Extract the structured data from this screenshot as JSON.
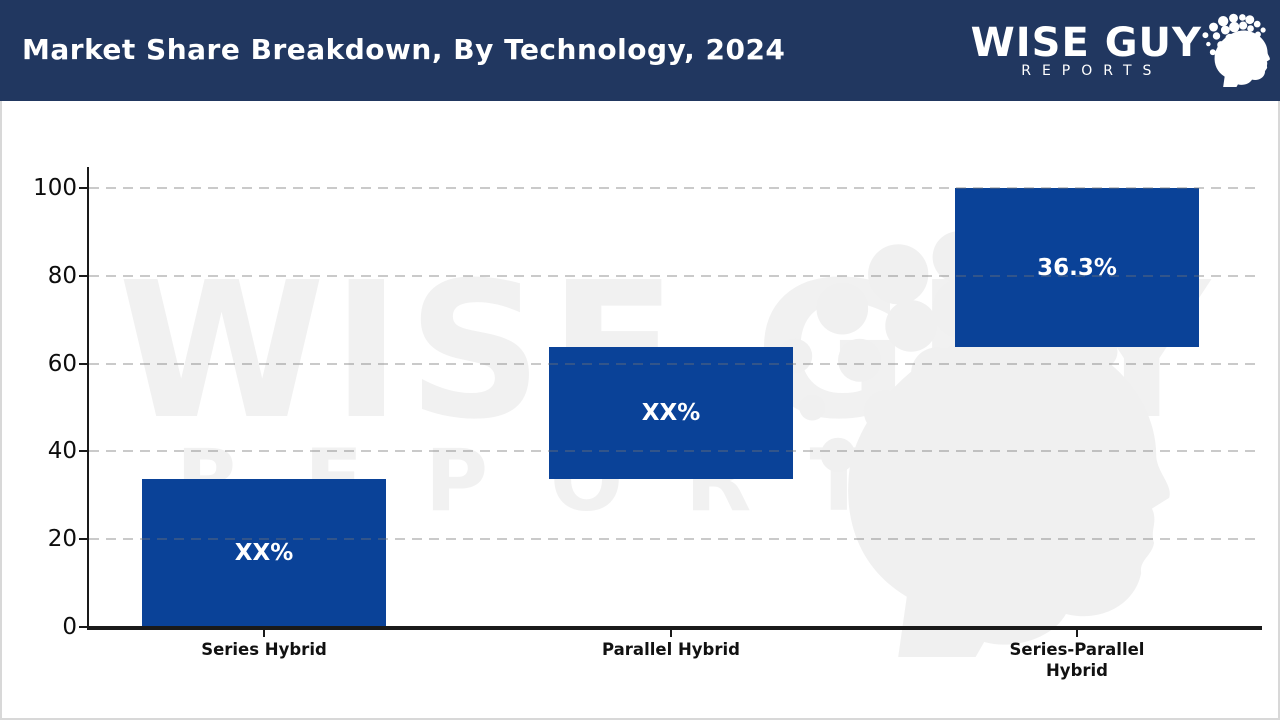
{
  "header": {
    "title": "Market Share Breakdown, By Technology, 2024",
    "logo": {
      "primary": "WISE GUY",
      "secondary": "REPORTS"
    }
  },
  "watermark": {
    "primary": "WISE GUY",
    "secondary": "REPORTS"
  },
  "chart_data": {
    "type": "bar",
    "variant": "floating-segment-waterfall",
    "title": "Market Share Breakdown, By Technology, 2024",
    "categories": [
      "Series Hybrid",
      "Parallel Hybrid",
      "Series-Parallel Hybrid"
    ],
    "segments": [
      {
        "category": "Series Hybrid",
        "start": 0,
        "end": 33.7,
        "value_label": "XX%"
      },
      {
        "category": "Parallel Hybrid",
        "start": 33.7,
        "end": 63.7,
        "value_label": "XX%"
      },
      {
        "category": "Series-Parallel Hybrid",
        "start": 63.7,
        "end": 100,
        "value": 36.3,
        "value_label": "36.3%"
      }
    ],
    "xlabel": "",
    "ylabel": "",
    "yticks": [
      0,
      20,
      40,
      60,
      80,
      100
    ],
    "ylim": [
      0,
      104
    ],
    "grid": {
      "axis": "y",
      "style": "dashed",
      "above_bars": true
    },
    "legend": "none",
    "colors": {
      "bar": "#0a4298",
      "header_navy": "#213760",
      "bar_label_text": "#ffffff",
      "axis": "#1a1a1a",
      "watermark": "#f1f1f1",
      "gridline": "rgba(115,115,115,0.38)"
    }
  }
}
